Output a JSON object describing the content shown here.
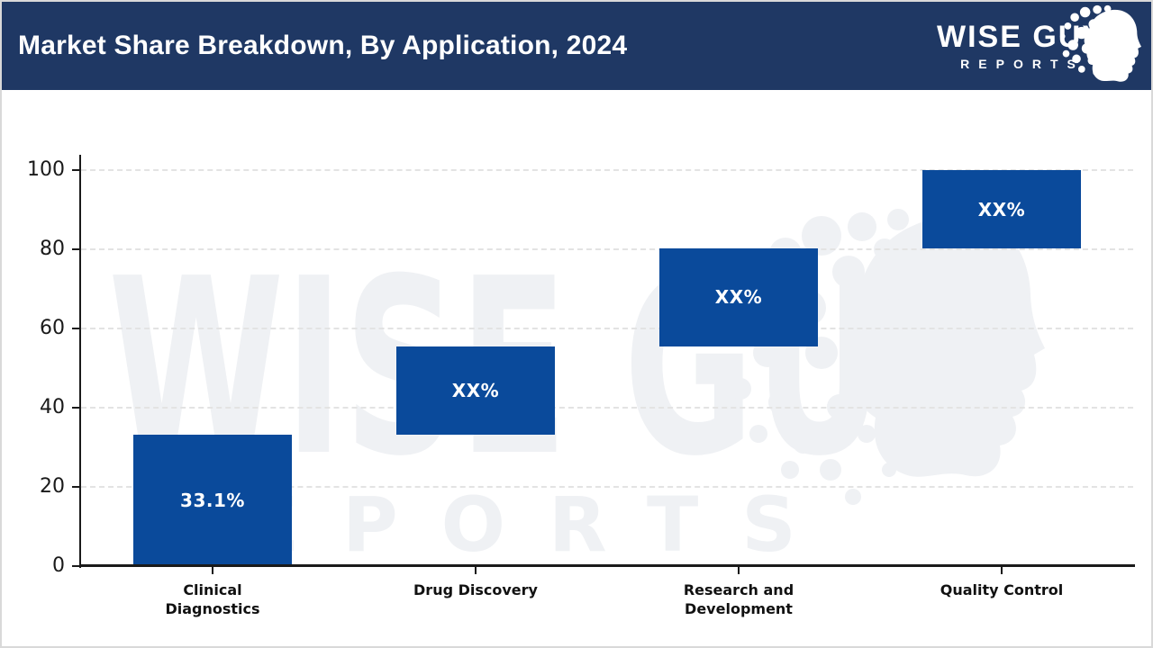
{
  "header": {
    "title": "Market Share Breakdown, By Application, 2024",
    "logo": {
      "line1": "WISE GUY",
      "line2": "REPORTS"
    }
  },
  "watermark": {
    "line1": "WISE GUY",
    "line2": "REPORTS"
  },
  "colors": {
    "header_bg": "#1f3864",
    "bar": "#0a4a9b",
    "axis": "#1a1a1a",
    "gridline": "#e3e3e3",
    "watermark": "#eff1f4",
    "bar_label": "#ffffff",
    "title_text": "#ffffff"
  },
  "chart_data": {
    "type": "bar",
    "subtype": "waterfall",
    "title": "Market Share Breakdown, By Application, 2024",
    "categories": [
      "Clinical Diagnostics",
      "Drug Discovery",
      "Research and Development",
      "Quality Control"
    ],
    "tick_labels": [
      "Clinical\nDiagnostics",
      "Drug Discovery",
      "Research and\nDevelopment",
      "Quality Control"
    ],
    "bars": [
      {
        "category": "Clinical Diagnostics",
        "start": 0,
        "end": 33.1,
        "label": "33.1%"
      },
      {
        "category": "Drug Discovery",
        "start": 33.1,
        "end": 55.5,
        "label": "XX%"
      },
      {
        "category": "Research and Development",
        "start": 55.5,
        "end": 80.2,
        "label": "XX%"
      },
      {
        "category": "Quality Control",
        "start": 80.2,
        "end": 100,
        "label": "XX%"
      }
    ],
    "xlabel": "",
    "ylabel": "",
    "ylim": [
      0,
      100
    ],
    "yticks": [
      0,
      20,
      40,
      60,
      80,
      100
    ],
    "grid": "horizontal-dashed",
    "legend": null,
    "bar_color": "#0a4a9b"
  }
}
